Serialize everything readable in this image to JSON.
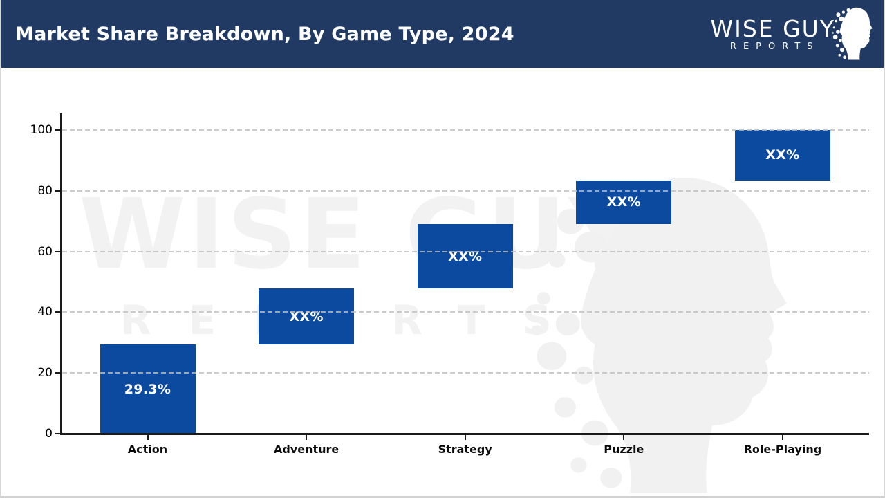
{
  "header": {
    "title": "Market Share Breakdown, By Game Type, 2024",
    "logo": {
      "line1": "WISE GUY",
      "line2": "REPORTS"
    }
  },
  "watermark": {
    "line1": "WISE GUY",
    "line2": "REPORTS"
  },
  "colors": {
    "header_bg": "#213a63",
    "bar_blue": "#0b4a9e",
    "axis": "#1a1a1a",
    "gridline": "#c8c8c8",
    "watermark": "#f2f2f2",
    "bar_label_text": "#ffffff",
    "page_border": "#d6d6d6"
  },
  "chart_data": {
    "type": "bar",
    "subtype": "waterfall",
    "title": "Market Share Breakdown, By Game Type, 2024",
    "categories": [
      "Action",
      "Adventure",
      "Strategy",
      "Puzzle",
      "Role-Playing"
    ],
    "segments": [
      {
        "category": "Action",
        "start": 0,
        "end": 29.3,
        "estimated_value": 29.3,
        "label": "29.3%"
      },
      {
        "category": "Adventure",
        "start": 29.3,
        "end": 47.8,
        "estimated_value": 18.5,
        "label": "XX%"
      },
      {
        "category": "Strategy",
        "start": 47.8,
        "end": 69.0,
        "estimated_value": 21.2,
        "label": "XX%"
      },
      {
        "category": "Puzzle",
        "start": 69.0,
        "end": 83.4,
        "estimated_value": 14.4,
        "label": "XX%"
      },
      {
        "category": "Role-Playing",
        "start": 83.4,
        "end": 100.0,
        "estimated_value": 16.6,
        "label": "XX%"
      }
    ],
    "xlabel": "",
    "ylabel": "",
    "yticks": [
      0,
      20,
      40,
      60,
      80,
      100
    ],
    "ylim": [
      0,
      105
    ],
    "grid": "horizontal-dashed",
    "legend": false
  }
}
